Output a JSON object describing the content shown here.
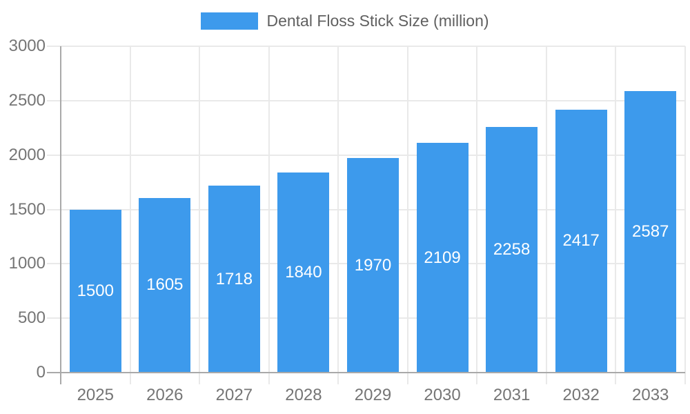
{
  "legend": {
    "label": "Dental Floss Stick Size (million)"
  },
  "chart_data": {
    "type": "bar",
    "title": "Dental Floss Stick Size (million)",
    "categories": [
      "2025",
      "2026",
      "2027",
      "2028",
      "2029",
      "2030",
      "2031",
      "2032",
      "2033"
    ],
    "values": [
      1500,
      1605,
      1718,
      1840,
      1970,
      2109,
      2258,
      2417,
      2587
    ],
    "series": [
      {
        "name": "Dental Floss Stick Size (million)",
        "values": [
          1500,
          1605,
          1718,
          1840,
          1970,
          2109,
          2258,
          2417,
          2587
        ]
      }
    ],
    "xlabel": "",
    "ylabel": "",
    "ylim": [
      0,
      3000
    ],
    "y_ticks": [
      0,
      500,
      1000,
      1500,
      2000,
      2500,
      3000
    ],
    "grid": true,
    "legend_position": "top",
    "colors": {
      "bar": "#3d9aec",
      "value_label": "#ffffff",
      "axis_label": "#757575",
      "legend_text": "#606060",
      "gridline": "#e9e9e9",
      "axis_line": "#a9a9a9",
      "background": "#ffffff"
    }
  }
}
